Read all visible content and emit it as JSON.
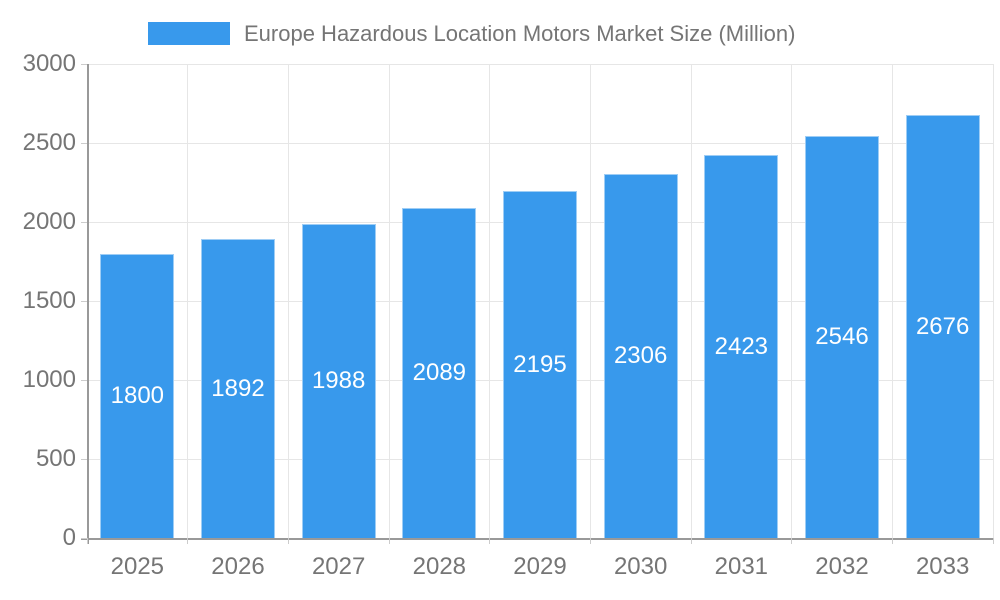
{
  "chart_data": {
    "type": "bar",
    "title": "Europe Hazardous Location Motors Market Size (Million)",
    "categories": [
      "2025",
      "2026",
      "2027",
      "2028",
      "2029",
      "2030",
      "2031",
      "2032",
      "2033"
    ],
    "values": [
      1800,
      1892,
      1988,
      2089,
      2195,
      2306,
      2423,
      2546,
      2676
    ],
    "series_name": "Europe Hazardous Location Motors Market Size (Million)",
    "xlabel": "",
    "ylabel": "",
    "ylim": [
      0,
      3000
    ],
    "ytick_step": 500,
    "ytick_labels": [
      "0",
      "500",
      "1000",
      "1500",
      "2000",
      "2500",
      "3000"
    ],
    "grid": true,
    "legend_position": "top",
    "bar_color": "#3899EC",
    "bar_border_color": "#9ecdf5",
    "value_label_color": "#ffffff",
    "tick_label_color": "#757575",
    "grid_color": "#e6e6e6",
    "axis_color": "#999999"
  }
}
